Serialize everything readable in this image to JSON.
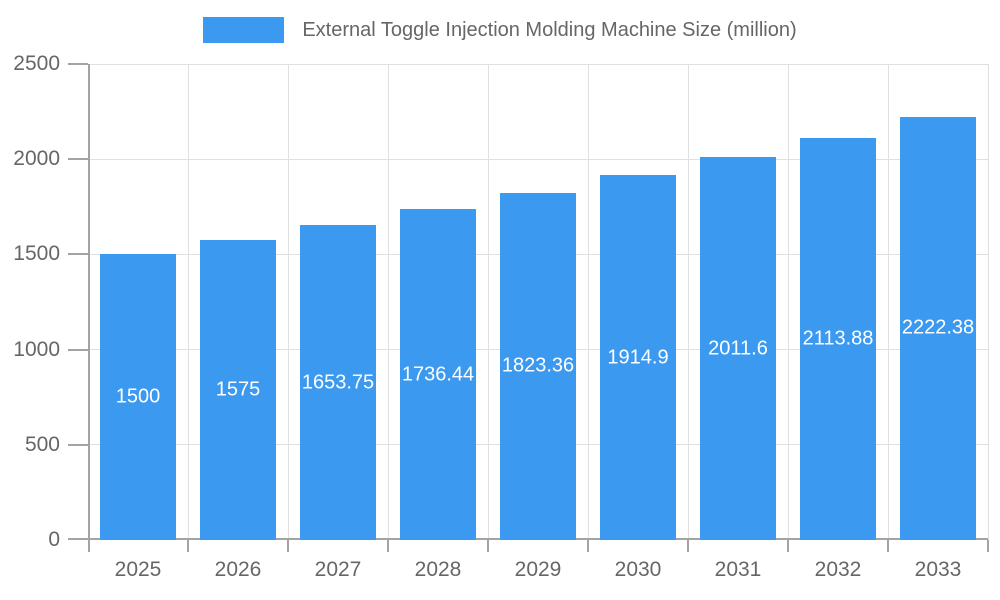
{
  "chart_data": {
    "type": "bar",
    "title": "External Toggle Injection Molding Machine Size (million)",
    "legend": {
      "position": "top",
      "items": [
        "External Toggle Injection Molding Machine Size (million)"
      ]
    },
    "categories": [
      "2025",
      "2026",
      "2027",
      "2028",
      "2029",
      "2030",
      "2031",
      "2032",
      "2033"
    ],
    "values": [
      1500,
      1575,
      1653.75,
      1736.44,
      1823.36,
      1914.9,
      2011.6,
      2113.88,
      2222.38
    ],
    "bar_labels": [
      "1500",
      "1575",
      "1653.75",
      "1736.44",
      "1823.36",
      "1914.9",
      "2011.6",
      "2113.88",
      "2222.38"
    ],
    "xlabel": "",
    "ylabel": "",
    "ylim": [
      0,
      2500
    ],
    "yticks": [
      0,
      500,
      1000,
      1500,
      2000,
      2500
    ],
    "grid": true,
    "colors": {
      "bar": "#3B99F0",
      "grid": "#E0E0E0",
      "axis": "#A3A3A3",
      "tick_text": "#666666",
      "bar_label_text": "#FFFFFF",
      "background": "#FFFFFF"
    }
  }
}
